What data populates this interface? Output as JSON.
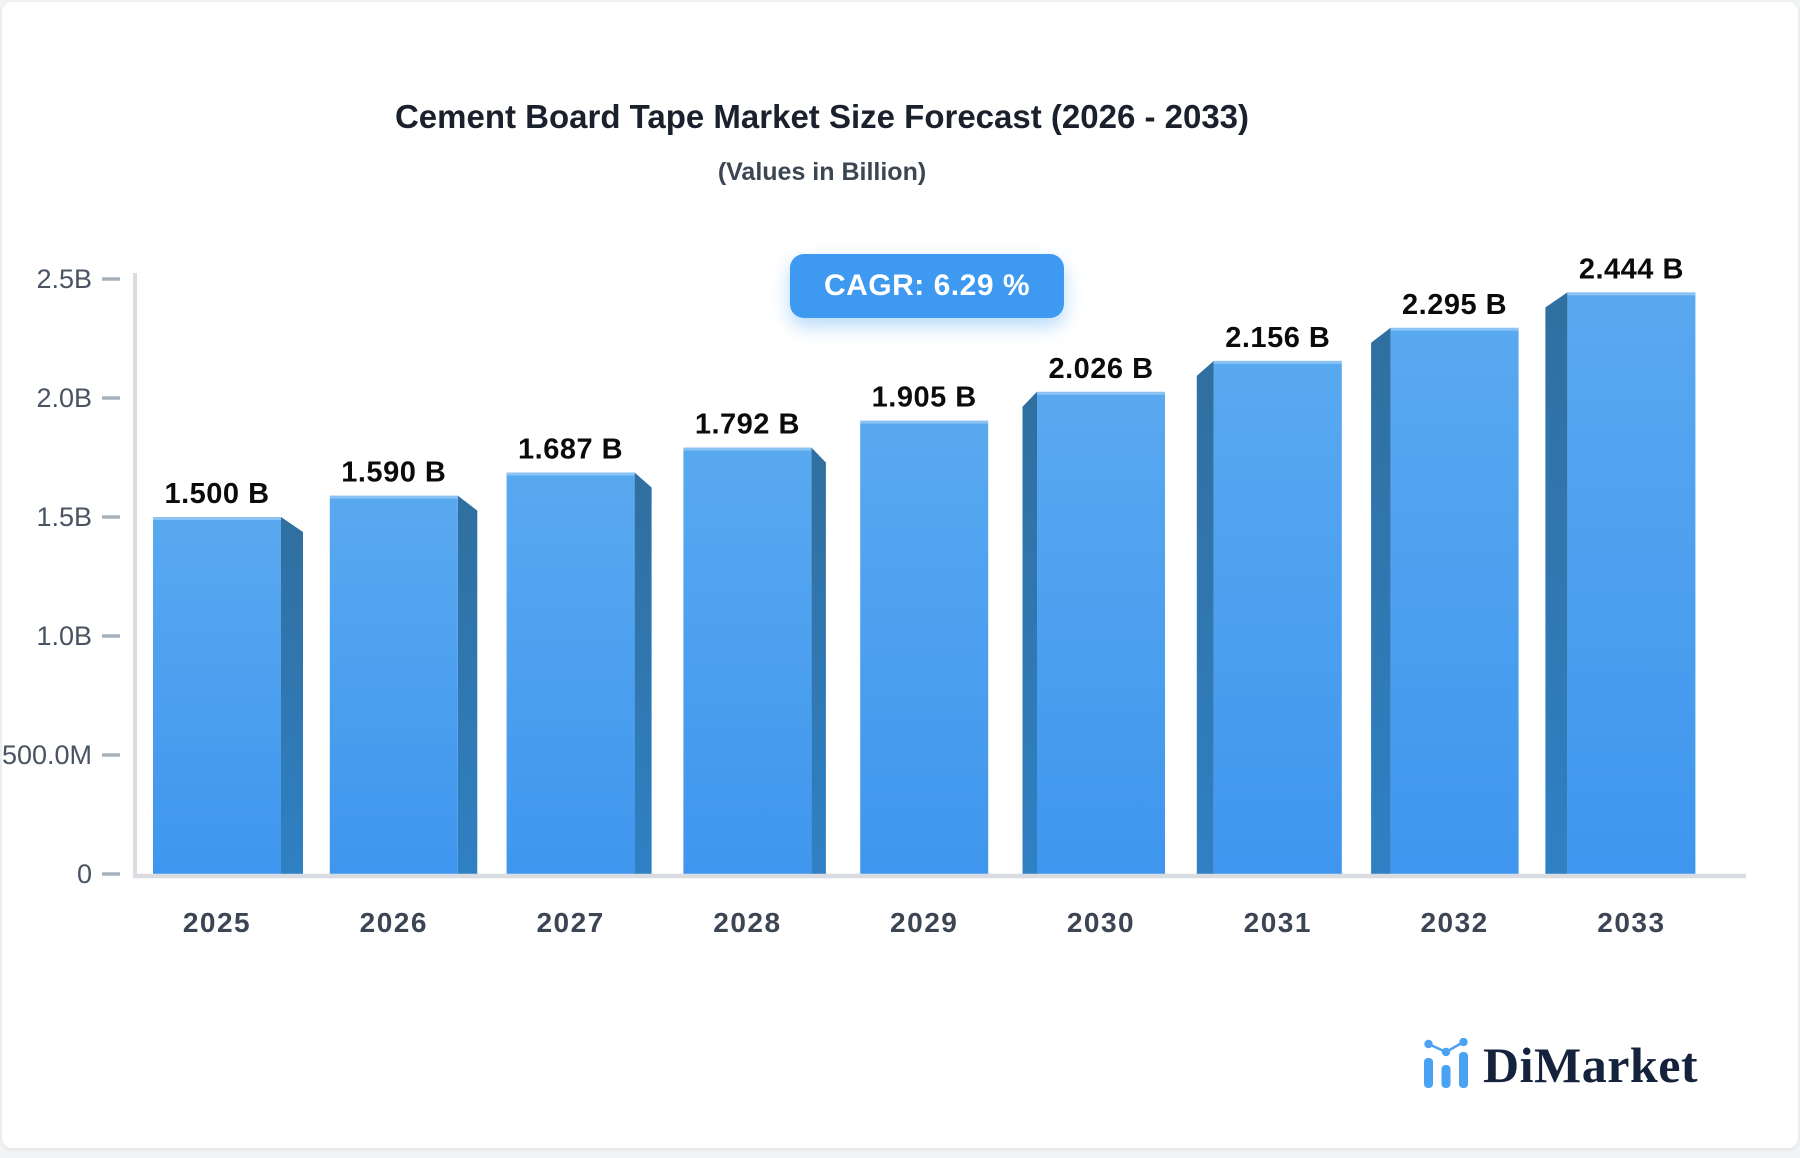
{
  "title": "Cement Board Tape Market Size Forecast (2026 - 2033)",
  "subtitle": "(Values in Billion)",
  "badge": {
    "label": "CAGR: 6.29 %"
  },
  "logo": {
    "name": "DiMarket"
  },
  "colors": {
    "accent": "#3E9AF0",
    "bar_front_top": "#59A9F0",
    "bar_front_bottom": "#3F96EE",
    "bar_side_top": "#306F9F",
    "bar_side_bottom": "#2F80C4",
    "axis_line": "#d9dce1",
    "tick_mark": "#a8b0ba",
    "tick_label": "#4a5361",
    "year_label": "#3c4554",
    "value_label": "#0b0b0c",
    "logo_blue": "#4AA2F2",
    "logo_navy": "#15223b"
  },
  "chart_data": {
    "type": "bar",
    "title": "Cement Board Tape Market Size Forecast (2026 - 2033)",
    "subtitle": "(Values in Billion)",
    "categories": [
      "2025",
      "2026",
      "2027",
      "2028",
      "2029",
      "2030",
      "2031",
      "2032",
      "2033"
    ],
    "values": [
      1.5,
      1.59,
      1.687,
      1.792,
      1.905,
      2.026,
      2.156,
      2.295,
      2.444
    ],
    "value_labels": [
      "1.500 B",
      "1.590 B",
      "1.687 B",
      "1.792 B",
      "1.905 B",
      "2.026 B",
      "2.156 B",
      "2.295 B",
      "2.444 B"
    ],
    "y_ticks": [
      {
        "label": "0",
        "value": 0
      },
      {
        "label": "500.0M",
        "value": 0.5
      },
      {
        "label": "1.0B",
        "value": 1.0
      },
      {
        "label": "1.5B",
        "value": 1.5
      },
      {
        "label": "2.0B",
        "value": 2.0
      },
      {
        "label": "2.5B",
        "value": 2.5
      }
    ],
    "ylim": [
      0,
      2.5
    ],
    "xlabel": "",
    "ylabel": "",
    "grid": false,
    "legend": "none",
    "annotation": "CAGR: 6.29 %"
  }
}
